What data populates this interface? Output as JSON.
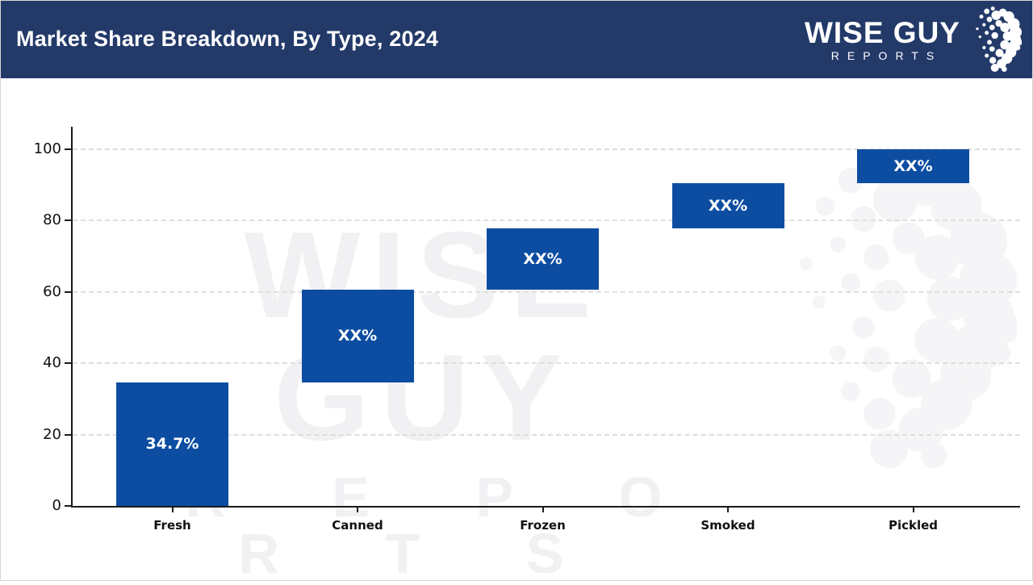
{
  "header": {
    "title": "Market Share Breakdown, By Type, 2024",
    "bg_color": "#233a69",
    "logo": {
      "line1": "WISE GUY",
      "line2": "REPORTS"
    }
  },
  "watermark": {
    "line1": "WISE GUY",
    "line2": "R E P O R T S"
  },
  "chart_data": {
    "type": "bar",
    "subtype": "waterfall",
    "title": "Market Share Breakdown, By Type, 2024",
    "categories": [
      "Fresh",
      "Canned",
      "Frozen",
      "Smoked",
      "Pickled"
    ],
    "segments": [
      {
        "label": "Fresh",
        "start": 0,
        "end": 34.7,
        "value_label": "34.7%"
      },
      {
        "label": "Canned",
        "start": 34.7,
        "end": 60.7,
        "value_label": "XX%"
      },
      {
        "label": "Frozen",
        "start": 60.7,
        "end": 77.9,
        "value_label": "XX%"
      },
      {
        "label": "Smoked",
        "start": 77.9,
        "end": 90.5,
        "value_label": "XX%"
      },
      {
        "label": "Pickled",
        "start": 90.5,
        "end": 100,
        "value_label": "XX%"
      }
    ],
    "y_ticks": [
      0,
      20,
      40,
      60,
      80,
      100
    ],
    "ylim": [
      0,
      106
    ],
    "xlabel": "",
    "ylabel": "",
    "bar_color": "#0c4da2",
    "grid": "horizontal-dashed",
    "legend": "none"
  }
}
